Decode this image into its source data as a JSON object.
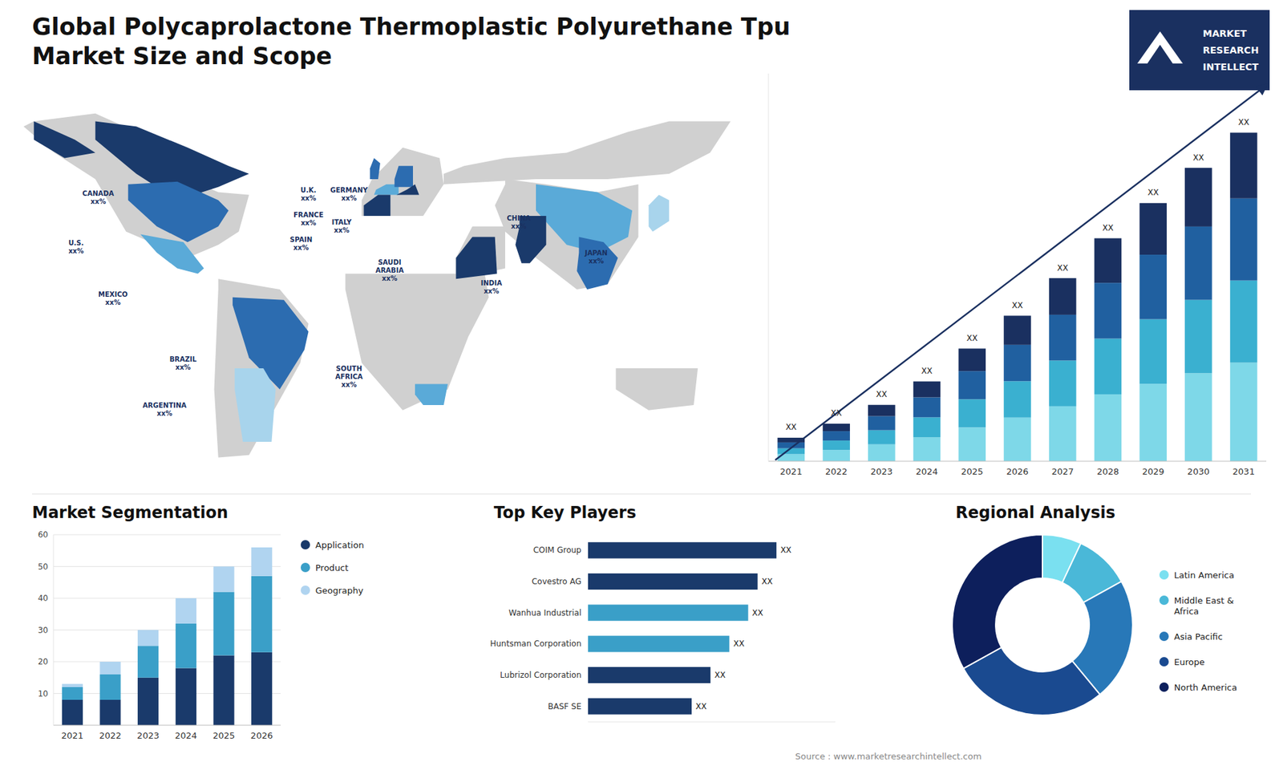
{
  "chart_data": [
    {
      "type": "bar",
      "title": "Global Polycaprolactone Thermoplastic Polyurethane Tpu\nMarket Size and Scope",
      "stacked": true,
      "categories": [
        "2021",
        "2022",
        "2023",
        "2024",
        "2025",
        "2026",
        "2027",
        "2028",
        "2029",
        "2030",
        "2031"
      ],
      "series": [
        {
          "color": "#7ed8e8",
          "values": [
            0.3,
            0.48,
            0.72,
            1.02,
            1.44,
            1.86,
            2.34,
            2.85,
            3.3,
            3.75,
            4.2
          ]
        },
        {
          "color": "#3ab0d0",
          "values": [
            0.25,
            0.4,
            0.6,
            0.85,
            1.2,
            1.55,
            1.95,
            2.375,
            2.75,
            3.125,
            3.5
          ]
        },
        {
          "color": "#2060a0",
          "values": [
            0.25,
            0.4,
            0.6,
            0.85,
            1.2,
            1.55,
            1.95,
            2.375,
            2.75,
            3.125,
            3.5
          ]
        },
        {
          "color": "#1a3060",
          "values": [
            0.2,
            0.32,
            0.48,
            0.68,
            0.96,
            1.24,
            1.56,
            1.9,
            2.2,
            2.5,
            2.8
          ],
          "value_labels": [
            "XX",
            "XX",
            "XX",
            "XX",
            "XX",
            "XX",
            "XX",
            "XX",
            "XX",
            "XX",
            "XX"
          ]
        }
      ],
      "ylim": [
        0,
        16.52
      ],
      "tick_labels": "x",
      "annotations": [
        "MARKET",
        "RESEARCH",
        "INTELLECT",
        "Source : www.marketresearchintellect.com"
      ]
    },
    {
      "type": "map",
      "annotations": [
        "CANADA\nxx%",
        "U.S.\nxx%",
        "MEXICO\nxx%",
        "BRAZIL\nxx%",
        "ARGENTINA\nxx%",
        "U.K.\nxx%",
        "FRANCE\nxx%",
        "SPAIN\nxx%",
        "GERMANY\nxx%",
        "ITALY\nxx%",
        "SAUDI\nARABIA\nxx%",
        "SOUTH\nAFRICA\nxx%",
        "CHINA\nxx%",
        "JAPAN\nxx%",
        "INDIA\nxx%"
      ]
    },
    {
      "type": "bar",
      "title": "Market Segmentation",
      "stacked": true,
      "categories": [
        "2021",
        "2022",
        "2023",
        "2024",
        "2025",
        "2026"
      ],
      "series": [
        {
          "name": "Application",
          "color": "#1a3a6b",
          "values": [
            8,
            8,
            15,
            18,
            22,
            23
          ]
        },
        {
          "name": "Product",
          "color": "#3a9fc8",
          "values": [
            4,
            8,
            10,
            14,
            20,
            24
          ]
        },
        {
          "name": "Geography",
          "color": "#b0d4f0",
          "values": [
            1,
            4,
            5,
            8,
            8,
            9
          ]
        }
      ],
      "ylim": [
        0,
        60
      ],
      "yticks": [
        10,
        20,
        30,
        40,
        50,
        60
      ],
      "grid": true,
      "legend": "right"
    },
    {
      "type": "bar",
      "orientation": "horizontal",
      "title": "Top Key Players",
      "categories": [
        "COIM Group",
        "Covestro AG",
        "Wanhua Industrial",
        "Huntsman Corporation",
        "Lubrizol Corporation",
        "BASF SE"
      ],
      "values": [
        0.8,
        0.72,
        0.68,
        0.6,
        0.52,
        0.44
      ],
      "value_labels": [
        "XX",
        "XX",
        "XX",
        "XX",
        "XX",
        "XX"
      ],
      "colors": [
        "#1a3a6b",
        "#1a3a6b",
        "#3a9fc8",
        "#3a9fc8",
        "#1a3a6b",
        "#1a3a6b"
      ],
      "xlim": [
        0,
        1.05
      ],
      "tick_labels": "y"
    },
    {
      "type": "pie",
      "title": "Regional Analysis",
      "categories": [
        "Latin America",
        "Middle East &\nAfrica",
        "Asia Pacific",
        "Europe",
        "North America"
      ],
      "values": [
        7,
        10,
        22,
        28,
        33
      ],
      "colors": [
        "#7ae0f0",
        "#4ab8d8",
        "#2878b8",
        "#1a4a90",
        "#0d1f5c"
      ],
      "legend": "right"
    }
  ]
}
